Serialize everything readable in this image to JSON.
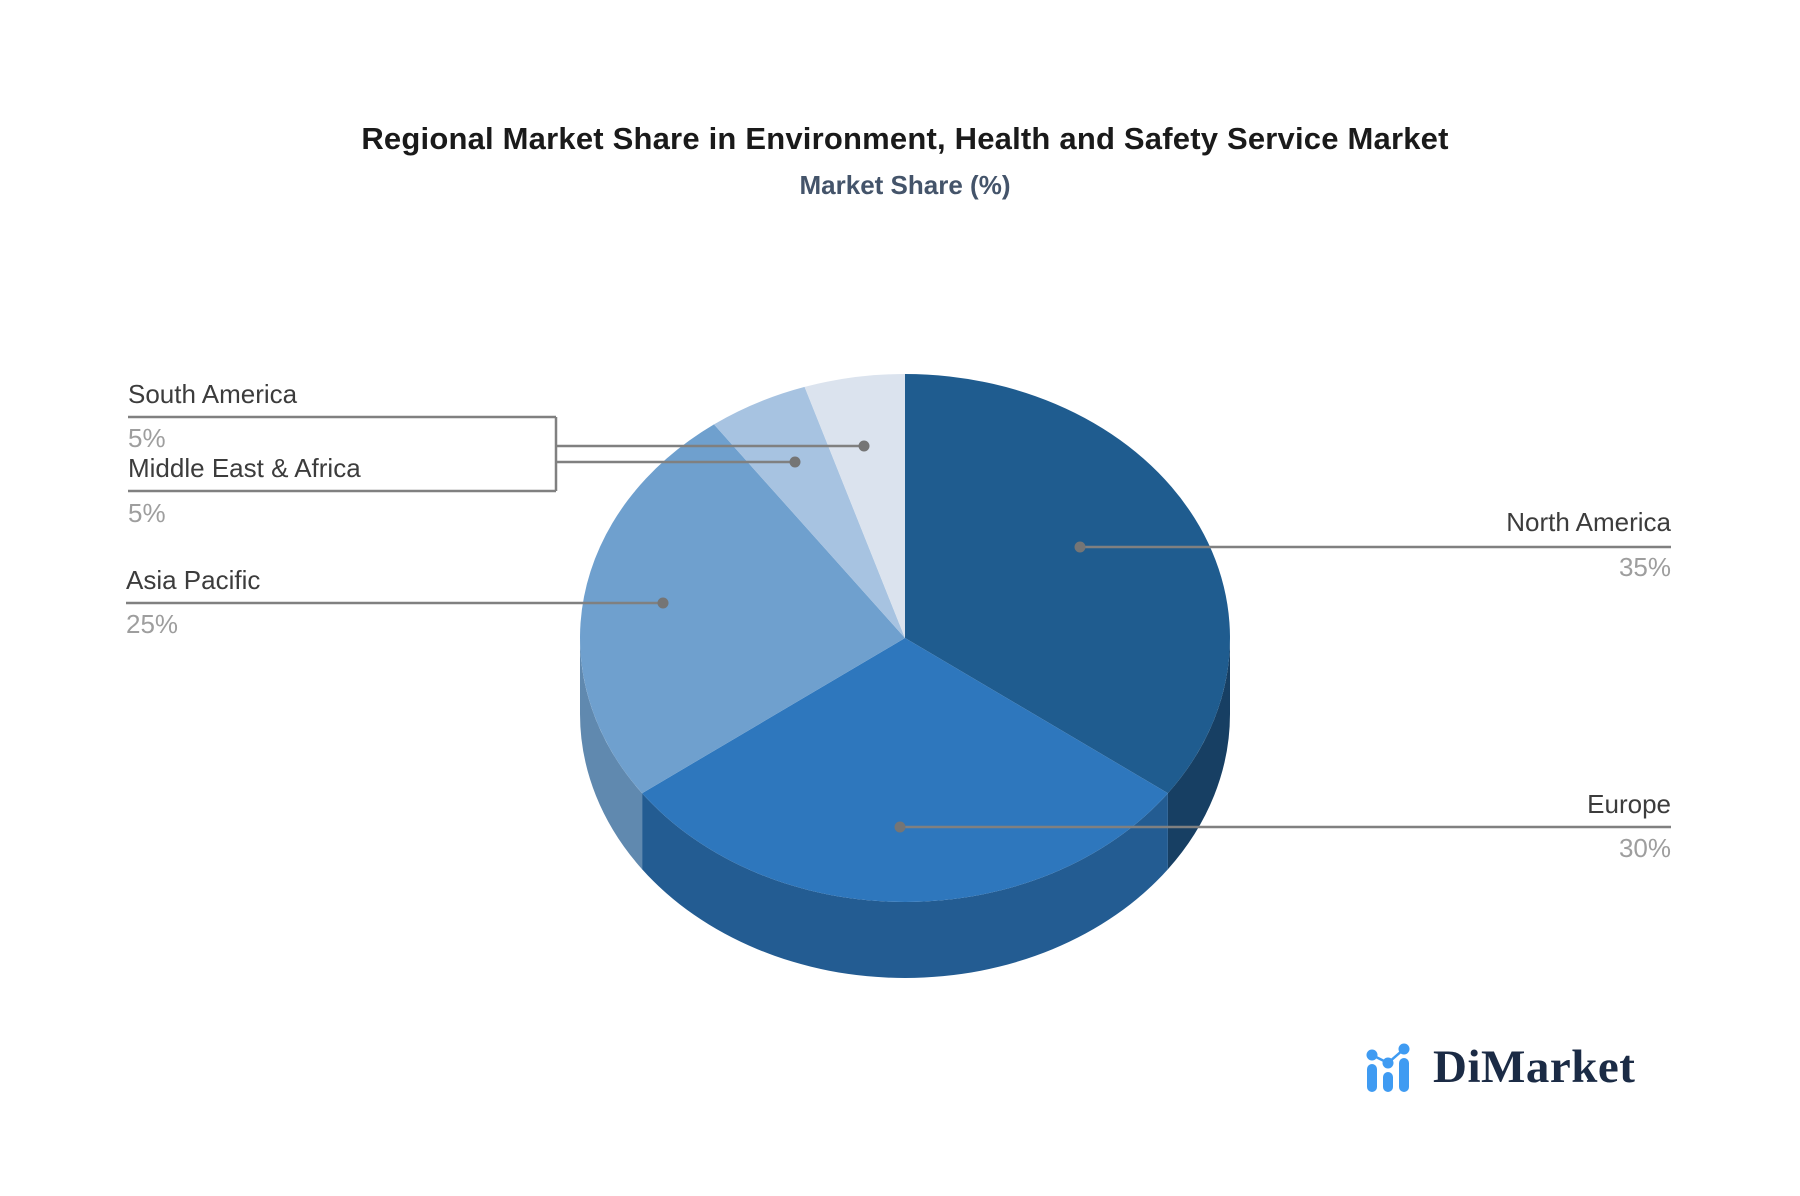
{
  "title": "Regional Market Share in Environment, Health and Safety Service Market",
  "subtitle": "Market Share (%)",
  "logo": {
    "text": "DiMarket",
    "icon": "bar-line-chart-icon"
  },
  "chart_data": {
    "type": "pie",
    "title": "Regional Market Share in Environment, Health and Safety Service Market",
    "subtitle": "Market Share (%)",
    "unit": "%",
    "effect": "3d",
    "start_angle_deg": 90,
    "direction": "clockwise",
    "legend_position": "none",
    "leader_line_color": "#808080",
    "slices": [
      {
        "label": "North America",
        "value": 35,
        "value_label": "35%",
        "color": "#1F5C8F",
        "side_color": "#173F63",
        "label_side": "right"
      },
      {
        "label": "Europe",
        "value": 30,
        "value_label": "30%",
        "color": "#2E77BD",
        "side_color": "#235C92",
        "label_side": "right"
      },
      {
        "label": "Asia Pacific",
        "value": 25,
        "value_label": "25%",
        "color": "#6FA0CE",
        "side_color": "#6089AF",
        "label_side": "left"
      },
      {
        "label": "Middle East & Africa",
        "value": 5,
        "value_label": "5%",
        "color": "#A7C3E1",
        "side_color": "#8FB0D4",
        "label_side": "left"
      },
      {
        "label": "South America",
        "value": 5,
        "value_label": "5%",
        "color": "#DBE3EE",
        "side_color": "#C3CFE0",
        "label_side": "left"
      }
    ]
  }
}
